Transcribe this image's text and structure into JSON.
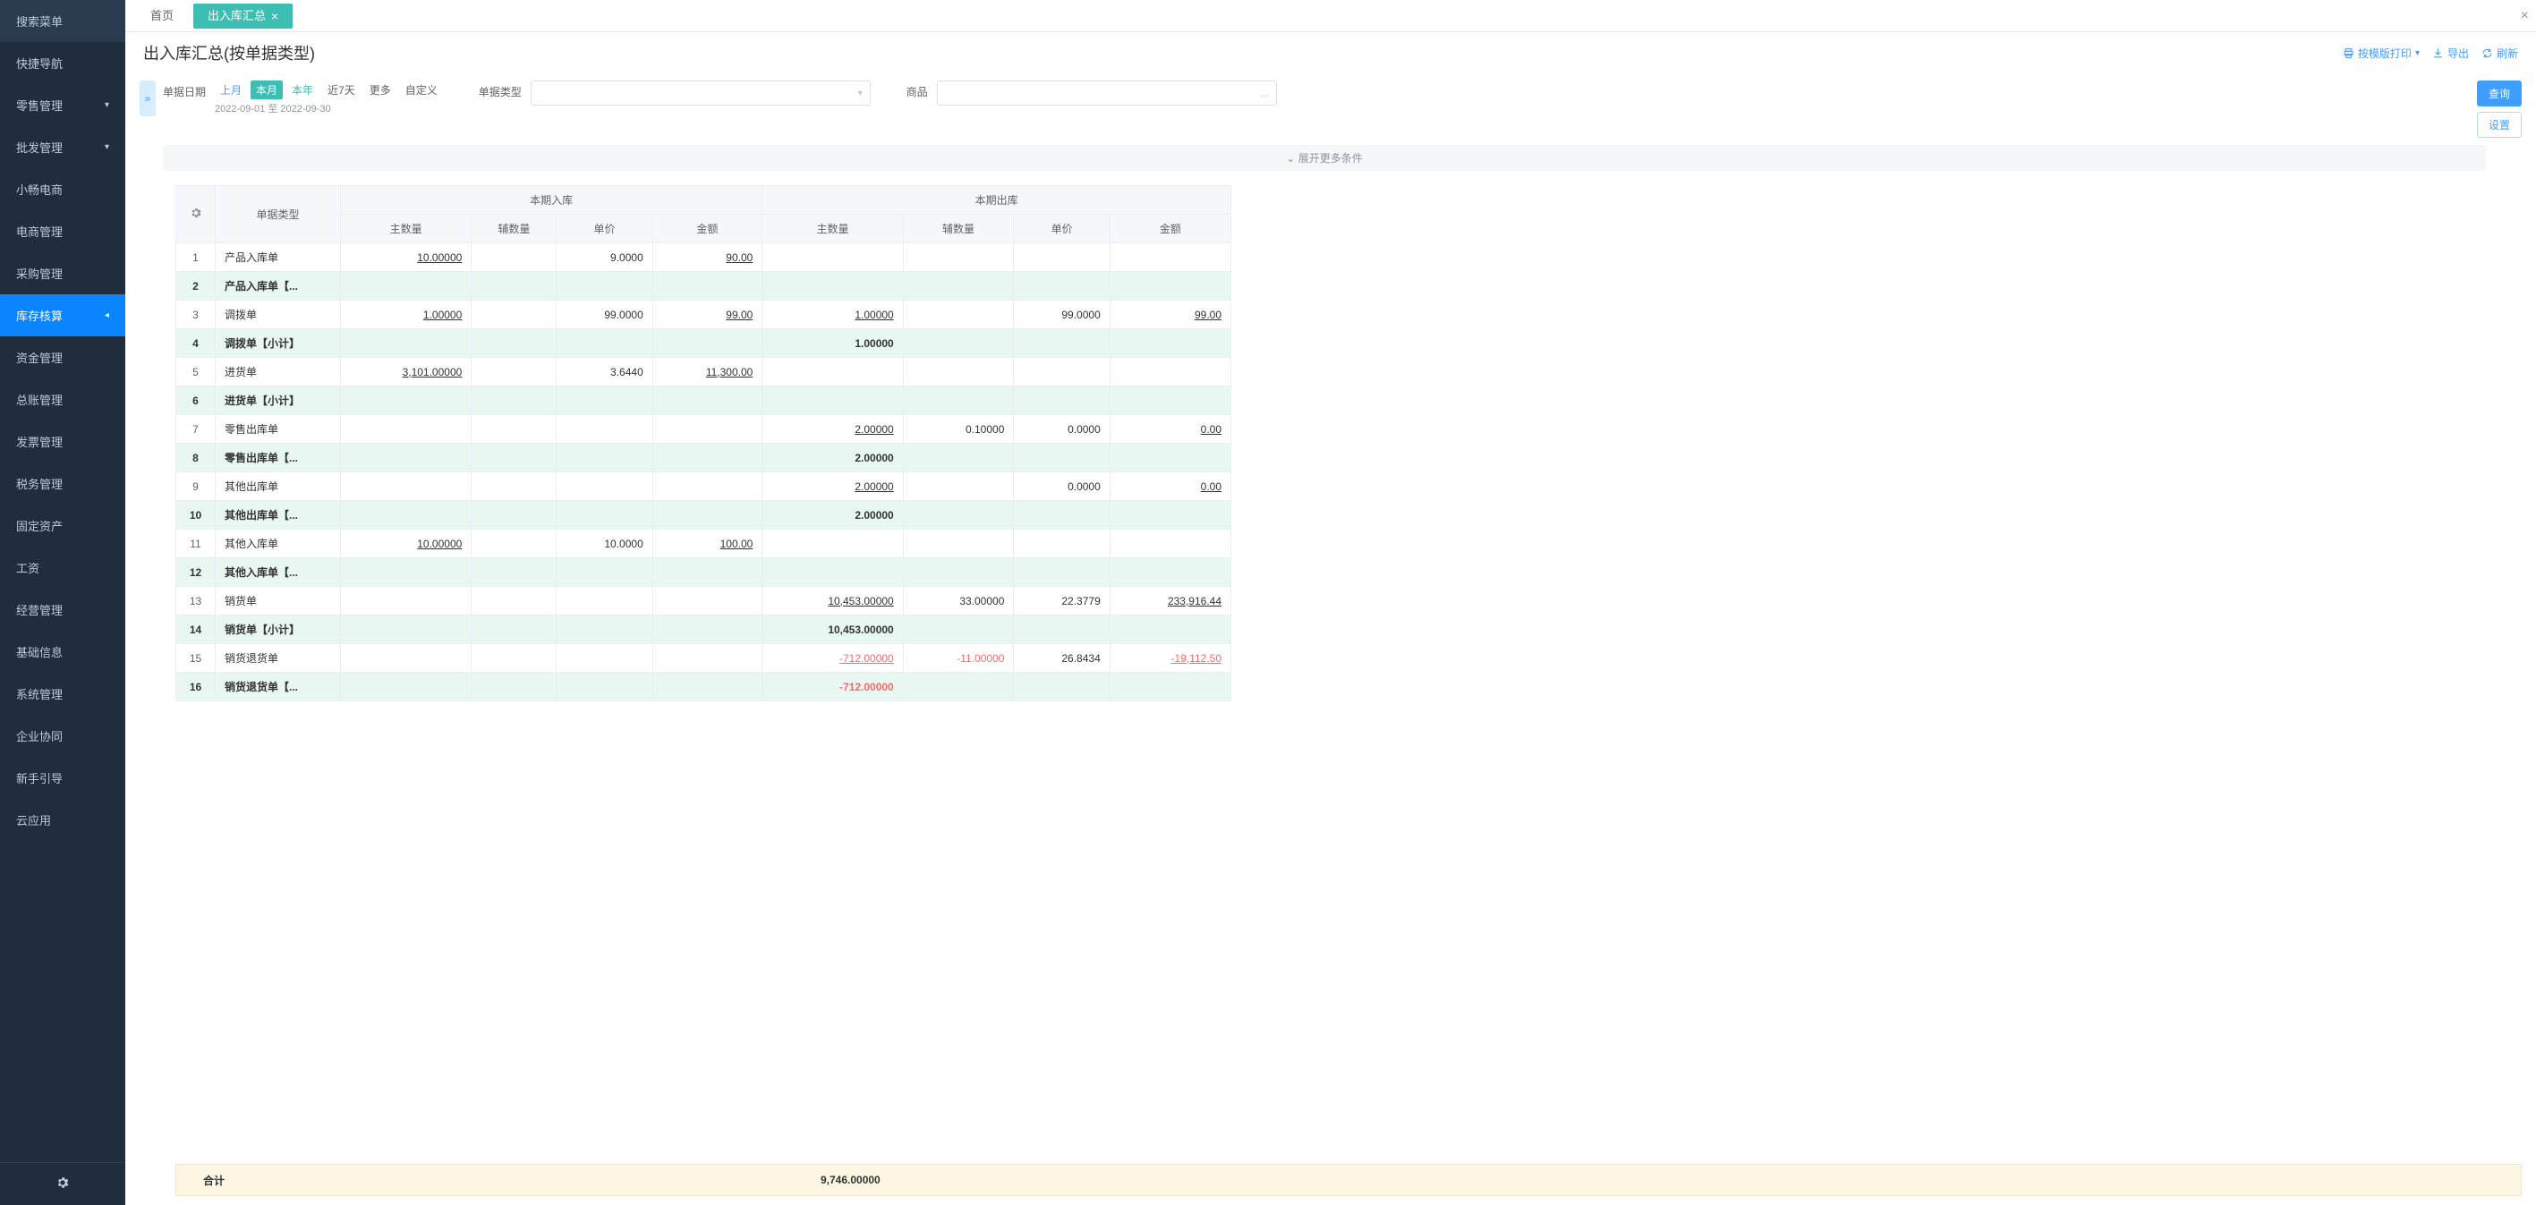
{
  "sidebar": {
    "items": [
      {
        "label": "搜索菜单",
        "caret": false
      },
      {
        "label": "快捷导航",
        "caret": false
      },
      {
        "label": "零售管理",
        "caret": true
      },
      {
        "label": "批发管理",
        "caret": true
      },
      {
        "label": "小畅电商",
        "caret": false
      },
      {
        "label": "电商管理",
        "caret": false
      },
      {
        "label": "采购管理",
        "caret": false
      },
      {
        "label": "库存核算",
        "caret": false,
        "active": true,
        "caretLeft": true
      },
      {
        "label": "资金管理",
        "caret": false
      },
      {
        "label": "总账管理",
        "caret": false
      },
      {
        "label": "发票管理",
        "caret": false
      },
      {
        "label": "税务管理",
        "caret": false
      },
      {
        "label": "固定资产",
        "caret": false
      },
      {
        "label": "工资",
        "caret": false
      },
      {
        "label": "经营管理",
        "caret": false
      },
      {
        "label": "基础信息",
        "caret": false
      },
      {
        "label": "系统管理",
        "caret": false
      },
      {
        "label": "企业协同",
        "caret": false
      },
      {
        "label": "新手引导",
        "caret": false
      },
      {
        "label": "云应用",
        "caret": false
      }
    ]
  },
  "tabs": {
    "home": "首页",
    "active": "出入库汇总"
  },
  "page": {
    "title": "出入库汇总(按单据类型)"
  },
  "actions": {
    "print": "按模版打印",
    "export": "导出",
    "refresh": "刷新"
  },
  "filter": {
    "dateLabel": "单据日期",
    "chips": {
      "lastMonth": "上月",
      "thisMonth": "本月",
      "thisYear": "本年",
      "last7": "近7天",
      "more": "更多",
      "custom": "自定义"
    },
    "dateRange": "2022-09-01 至 2022-09-30",
    "typeLabel": "单据类型",
    "productLabel": "商品",
    "productPlaceholder": "...",
    "searchBtn": "查询",
    "settingsBtn": "设置",
    "expand": "展开更多条件"
  },
  "table": {
    "headers": {
      "docType": "单据类型",
      "inGroup": "本期入库",
      "outGroup": "本期出库",
      "mainQty": "主数量",
      "auxQty": "辅数量",
      "price": "单价",
      "amount": "金额"
    },
    "rows": [
      {
        "idx": "1",
        "type": "产品入库单",
        "in": {
          "mainQty": "10.00000",
          "auxQty": "",
          "price": "9.0000",
          "amount": "90.00"
        },
        "out": {
          "mainQty": "",
          "auxQty": "",
          "price": "",
          "amount": ""
        },
        "ul": {
          "inMainQty": true,
          "inAmount": true
        }
      },
      {
        "idx": "2",
        "type": "产品入库单【...",
        "subtotal": true,
        "in": {
          "mainQty": "",
          "auxQty": "",
          "price": "",
          "amount": ""
        },
        "out": {
          "mainQty": "",
          "auxQty": "",
          "price": "",
          "amount": ""
        }
      },
      {
        "idx": "3",
        "type": "调拨单",
        "in": {
          "mainQty": "1.00000",
          "auxQty": "",
          "price": "99.0000",
          "amount": "99.00"
        },
        "out": {
          "mainQty": "1.00000",
          "auxQty": "",
          "price": "99.0000",
          "amount": "99.00"
        },
        "ul": {
          "inMainQty": true,
          "inAmount": true,
          "outMainQty": true,
          "outAmount": true
        }
      },
      {
        "idx": "4",
        "type": "调拨单【小计】",
        "subtotal": true,
        "in": {
          "mainQty": "",
          "auxQty": "",
          "price": "",
          "amount": ""
        },
        "out": {
          "mainQty": "1.00000",
          "auxQty": "",
          "price": "",
          "amount": ""
        }
      },
      {
        "idx": "5",
        "type": "进货单",
        "in": {
          "mainQty": "3,101.00000",
          "auxQty": "",
          "price": "3.6440",
          "amount": "11,300.00"
        },
        "out": {
          "mainQty": "",
          "auxQty": "",
          "price": "",
          "amount": ""
        },
        "ul": {
          "inMainQty": true,
          "inAmount": true
        }
      },
      {
        "idx": "6",
        "type": "进货单【小计】",
        "subtotal": true,
        "in": {
          "mainQty": "",
          "auxQty": "",
          "price": "",
          "amount": ""
        },
        "out": {
          "mainQty": "",
          "auxQty": "",
          "price": "",
          "amount": ""
        }
      },
      {
        "idx": "7",
        "type": "零售出库单",
        "in": {
          "mainQty": "",
          "auxQty": "",
          "price": "",
          "amount": ""
        },
        "out": {
          "mainQty": "2.00000",
          "auxQty": "0.10000",
          "price": "0.0000",
          "amount": "0.00"
        },
        "ul": {
          "outMainQty": true,
          "outAmount": true
        }
      },
      {
        "idx": "8",
        "type": "零售出库单【...",
        "subtotal": true,
        "in": {
          "mainQty": "",
          "auxQty": "",
          "price": "",
          "amount": ""
        },
        "out": {
          "mainQty": "2.00000",
          "auxQty": "",
          "price": "",
          "amount": ""
        }
      },
      {
        "idx": "9",
        "type": "其他出库单",
        "in": {
          "mainQty": "",
          "auxQty": "",
          "price": "",
          "amount": ""
        },
        "out": {
          "mainQty": "2.00000",
          "auxQty": "",
          "price": "0.0000",
          "amount": "0.00"
        },
        "ul": {
          "outMainQty": true,
          "outAmount": true
        }
      },
      {
        "idx": "10",
        "type": "其他出库单【...",
        "subtotal": true,
        "in": {
          "mainQty": "",
          "auxQty": "",
          "price": "",
          "amount": ""
        },
        "out": {
          "mainQty": "2.00000",
          "auxQty": "",
          "price": "",
          "amount": ""
        }
      },
      {
        "idx": "11",
        "type": "其他入库单",
        "in": {
          "mainQty": "10.00000",
          "auxQty": "",
          "price": "10.0000",
          "amount": "100.00"
        },
        "out": {
          "mainQty": "",
          "auxQty": "",
          "price": "",
          "amount": ""
        },
        "ul": {
          "inMainQty": true,
          "inAmount": true
        }
      },
      {
        "idx": "12",
        "type": "其他入库单【...",
        "subtotal": true,
        "in": {
          "mainQty": "",
          "auxQty": "",
          "price": "",
          "amount": ""
        },
        "out": {
          "mainQty": "",
          "auxQty": "",
          "price": "",
          "amount": ""
        }
      },
      {
        "idx": "13",
        "type": "销货单",
        "in": {
          "mainQty": "",
          "auxQty": "",
          "price": "",
          "amount": ""
        },
        "out": {
          "mainQty": "10,453.00000",
          "auxQty": "33.00000",
          "price": "22.3779",
          "amount": "233,916.44"
        },
        "ul": {
          "outMainQty": true,
          "outAmount": true
        }
      },
      {
        "idx": "14",
        "type": "销货单【小计】",
        "subtotal": true,
        "in": {
          "mainQty": "",
          "auxQty": "",
          "price": "",
          "amount": ""
        },
        "out": {
          "mainQty": "10,453.00000",
          "auxQty": "",
          "price": "",
          "amount": ""
        }
      },
      {
        "idx": "15",
        "type": "销货退货单",
        "in": {
          "mainQty": "",
          "auxQty": "",
          "price": "",
          "amount": ""
        },
        "out": {
          "mainQty": "-712.00000",
          "auxQty": "-11.00000",
          "price": "26.8434",
          "amount": "-19,112.50"
        },
        "neg": true,
        "ul": {
          "outMainQty": true,
          "outAmount": true
        }
      },
      {
        "idx": "16",
        "type": "销货退货单【...",
        "subtotal": true,
        "neg": true,
        "in": {
          "mainQty": "",
          "auxQty": "",
          "price": "",
          "amount": ""
        },
        "out": {
          "mainQty": "-712.00000",
          "auxQty": "",
          "price": "",
          "amount": ""
        }
      }
    ],
    "footer": {
      "label": "合计",
      "outMainQty": "9,746.00000"
    }
  },
  "colors": {
    "sidebarBg": "#1f2d3d",
    "sidebarActive": "#0a84ff",
    "accent": "#3dbeb3",
    "primary": "#409eff",
    "border": "#ebeef5",
    "subtotalBg": "#e8f7f2",
    "footerBg": "#fdf6e3",
    "negative": "#f56c6c"
  }
}
